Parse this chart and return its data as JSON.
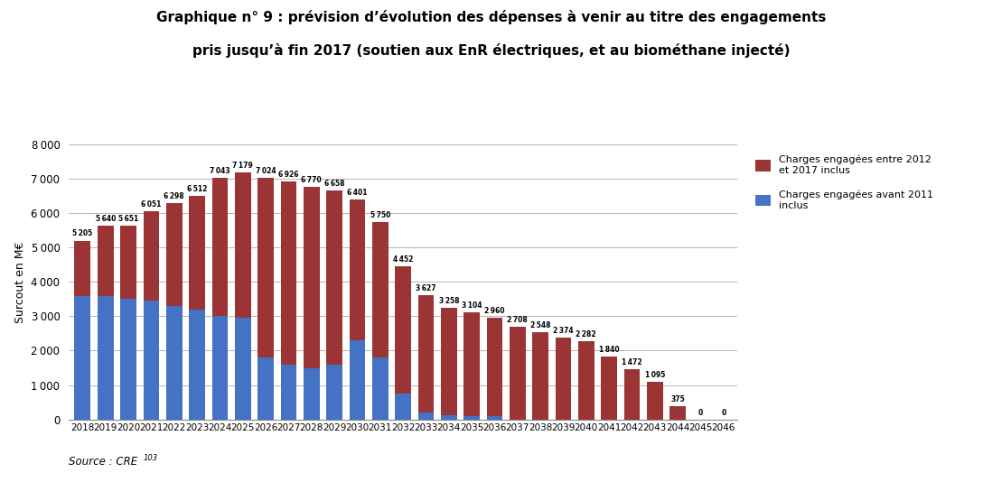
{
  "years": [
    2018,
    2019,
    2020,
    2021,
    2022,
    2023,
    2024,
    2025,
    2026,
    2027,
    2028,
    2029,
    2030,
    2031,
    2032,
    2033,
    2034,
    2035,
    2036,
    2037,
    2038,
    2039,
    2040,
    2041,
    2042,
    2043,
    2044,
    2045,
    2046
  ],
  "totals": [
    5205,
    5640,
    5651,
    6051,
    6298,
    6512,
    7043,
    7179,
    7024,
    6926,
    6770,
    6658,
    6401,
    5750,
    4452,
    3627,
    3258,
    3104,
    2960,
    2708,
    2548,
    2374,
    2282,
    1840,
    1472,
    1095,
    375,
    0,
    0
  ],
  "blue": [
    3600,
    3600,
    3500,
    3450,
    3300,
    3200,
    3000,
    2950,
    1800,
    1600,
    1500,
    1600,
    2300,
    1800,
    750,
    200,
    130,
    100,
    100,
    0,
    0,
    0,
    0,
    0,
    0,
    0,
    0,
    0,
    0
  ],
  "color_red": "#9b3535",
  "color_blue": "#4472c4",
  "ylabel": "Surcout en M€",
  "ylim_max": 8000,
  "yticks": [
    0,
    1000,
    2000,
    3000,
    4000,
    5000,
    6000,
    7000,
    8000
  ],
  "legend_red": "Charges engagées entre 2012\net 2017 inclus",
  "legend_blue": "Charges engagées avant 2011\ninclus",
  "source_text": "Source : CRE",
  "source_sup": "103",
  "title_line1": "Graphique n° 9 : prévision d’évolution des dépenses à venir au titre des engagements",
  "title_line2": "pris jusqu’à fin 2017 (soutien aux EnR électriques, et au biométhane injecté)"
}
